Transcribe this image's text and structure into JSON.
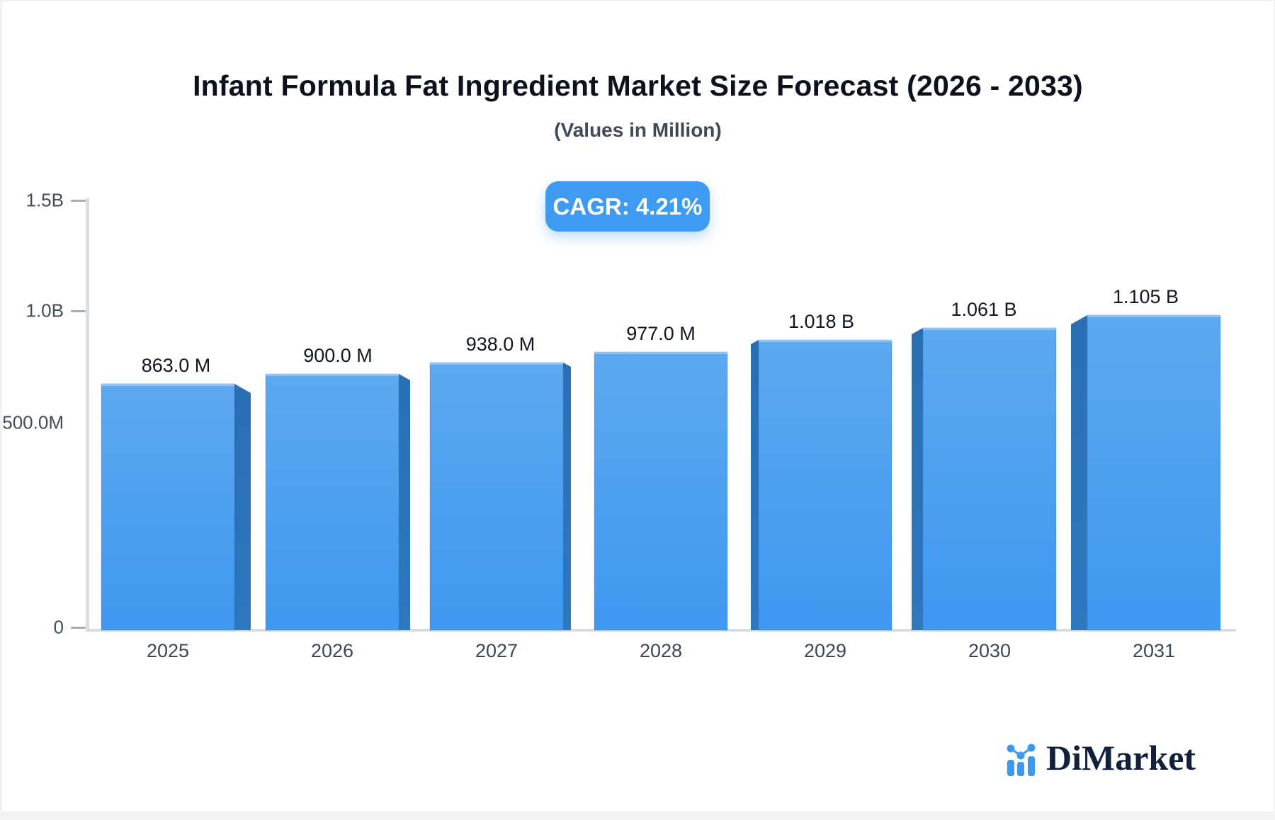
{
  "header": {
    "title": "Infant Formula Fat Ingredient Market Size Forecast (2026 - 2033)",
    "subtitle": "(Values in Million)"
  },
  "cagr_badge": {
    "label": "CAGR: 4.21%"
  },
  "chart_data": {
    "type": "bar",
    "title": "Infant Formula Fat Ingredient Market Size Forecast (2026 - 2033)",
    "subtitle": "(Values in Million)",
    "cagr_percent": 4.21,
    "categories": [
      "2025",
      "2026",
      "2027",
      "2028",
      "2029",
      "2030",
      "2031"
    ],
    "values_in_millions": [
      863,
      900,
      938,
      977,
      1018,
      1061,
      1105
    ],
    "value_labels": [
      "863.0 M",
      "900.0 M",
      "938.0 M",
      "977.0 M",
      "1.018 B",
      "1.061 B",
      "1.105 B"
    ],
    "y_axis_labels": [
      "1.5B",
      "1.0B",
      "500.0M",
      "0"
    ],
    "ylim_millions": [
      0,
      1500
    ],
    "legend": "none",
    "grid": "off",
    "colors": {
      "bar_face_top": "#5da8ef",
      "bar_face_bottom": "#3e98f0",
      "bar_side": "#2c72b7",
      "bar_top_highlight": "#90c3f5",
      "axis_line": "#d9dce1",
      "tick_dash": "#a7aeb8",
      "value_label_text": "#111722",
      "axis_label_text": "#404b5c",
      "badge_background": "#3f9bf1",
      "badge_text": "#ffffff"
    }
  },
  "branding": {
    "logo_text": "DiMarket",
    "logo_icon": "mini-bar-chart-icon",
    "logo_text_color": "#13203c",
    "logo_icon_color": "#3d98f2"
  }
}
